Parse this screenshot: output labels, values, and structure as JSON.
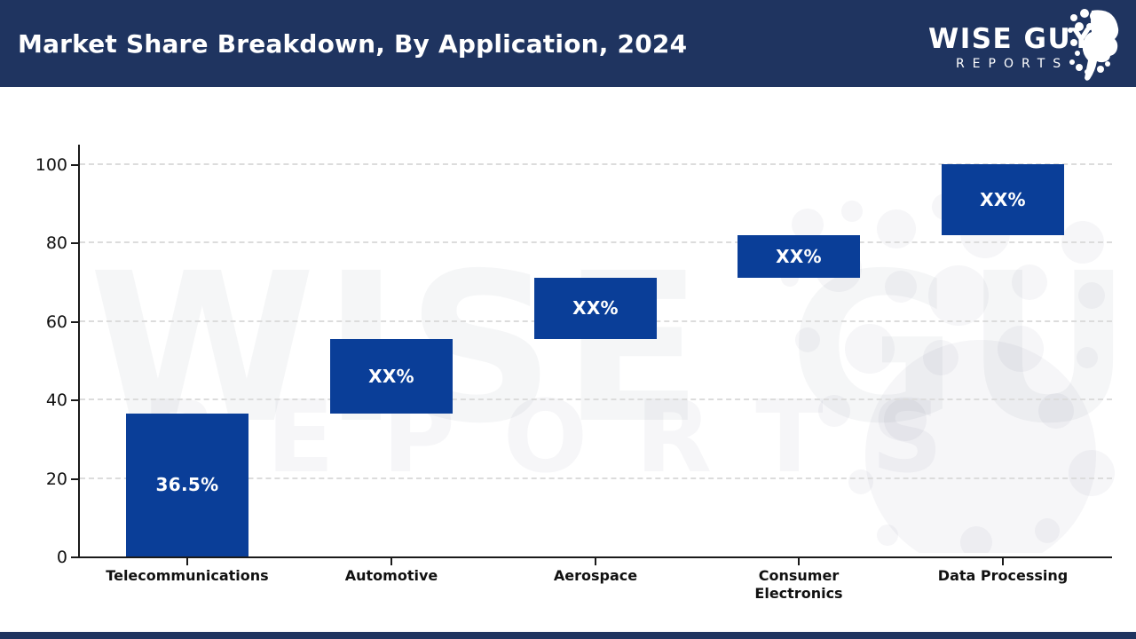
{
  "header": {
    "title": "Market Share Breakdown, By Application, 2024",
    "bg_color": "#1F3460",
    "logo": {
      "line1": "WISE GUY",
      "line2": "REPORTS"
    }
  },
  "watermark": {
    "line1": "WISE GUY",
    "line2": "REPORTS"
  },
  "footer": {
    "bg_color": "#1F3460"
  },
  "chart_data": {
    "type": "bar",
    "subtype": "waterfall",
    "title": "Market Share Breakdown, By Application, 2024",
    "categories": [
      "Telecommunications",
      "Automotive",
      "Aerospace",
      "Consumer Electronics",
      "Data Processing"
    ],
    "x_tick_lines": [
      [
        "Telecommunications"
      ],
      [
        "Automotive"
      ],
      [
        "Aerospace"
      ],
      [
        "Consumer",
        "Electronics"
      ],
      [
        "Data Processing"
      ]
    ],
    "bars": [
      {
        "category": "Telecommunications",
        "start": 0,
        "end": 36.5,
        "label": "36.5%"
      },
      {
        "category": "Automotive",
        "start": 36.5,
        "end": 55.5,
        "label": "XX%"
      },
      {
        "category": "Aerospace",
        "start": 55.5,
        "end": 71,
        "label": "XX%"
      },
      {
        "category": "Consumer Electronics",
        "start": 71,
        "end": 82,
        "label": "XX%"
      },
      {
        "category": "Data Processing",
        "start": 82,
        "end": 100,
        "label": "XX%"
      }
    ],
    "bar_color": "#0A3E98",
    "bar_label_color": "#ffffff",
    "ylim": [
      0,
      100
    ],
    "yticks": [
      0,
      20,
      40,
      60,
      80,
      100
    ],
    "xlabel": "",
    "ylabel": "",
    "grid": "horizontal-dashed",
    "legend": "none"
  }
}
